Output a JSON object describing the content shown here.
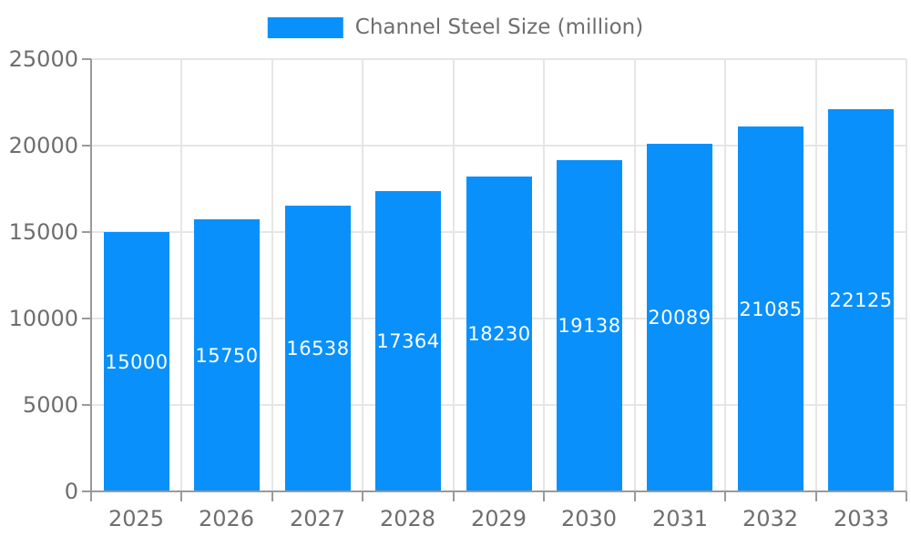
{
  "legend": {
    "label": "Channel Steel Size (million)"
  },
  "chart_data": {
    "type": "bar",
    "title": "",
    "categories": [
      "2025",
      "2026",
      "2027",
      "2028",
      "2029",
      "2030",
      "2031",
      "2032",
      "2033"
    ],
    "series": [
      {
        "name": "Channel Steel Size (million)",
        "values": [
          15000,
          15750,
          16538,
          17364,
          18230,
          19138,
          20089,
          21085,
          22125
        ]
      }
    ],
    "value_labels": [
      "15000",
      "15750",
      "16538",
      "17364",
      "18230",
      "19138",
      "20089",
      "21085",
      "22125"
    ],
    "xlabel": "",
    "ylabel": "",
    "ylim": [
      0,
      25000
    ],
    "yticks": [
      0,
      5000,
      10000,
      15000,
      20000,
      25000
    ],
    "ytick_labels": [
      "0",
      "5000",
      "10000",
      "15000",
      "20000",
      "25000"
    ],
    "grid": true,
    "legend_position": "top",
    "colors": {
      "bar": "#0990fb",
      "value_label": "#ffffff",
      "grid": "#e6e6e6",
      "axis": "#9a9a9a",
      "text": "#6e6e6e",
      "background": "#ffffff"
    }
  }
}
